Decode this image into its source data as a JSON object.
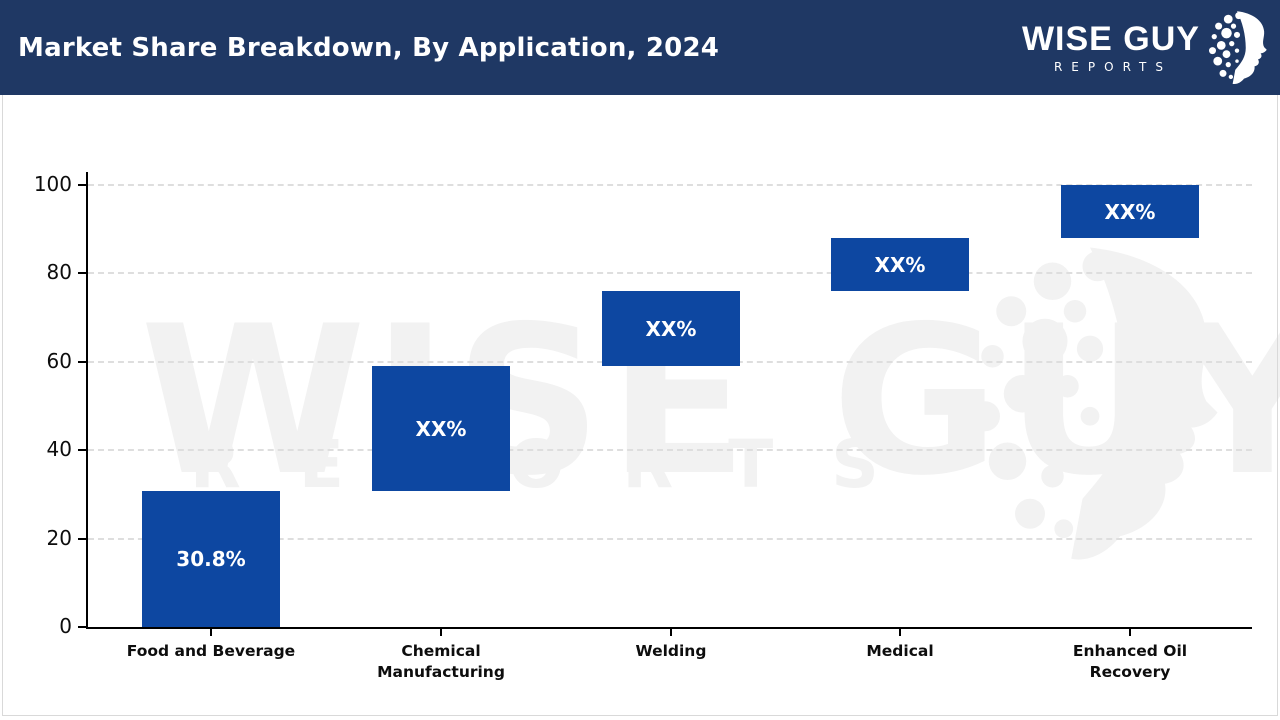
{
  "header": {
    "title": "Market Share Breakdown, By Application, 2024",
    "logo": {
      "line1": "WISE GUY",
      "line2": "REPORTS"
    }
  },
  "watermark": {
    "line1": "WISE GUY",
    "line2": "REPORTS"
  },
  "colors": {
    "header_bg": "#1f3864",
    "bar": "#0d47a1",
    "bar_label": "#ffffff",
    "grid": "#dedede",
    "axis": "#000000",
    "watermark": "#f2f2f2"
  },
  "chart_data": {
    "type": "bar",
    "subtype": "waterfall",
    "title": "Market Share Breakdown, By Application, 2024",
    "categories": [
      "Food and Beverage",
      "Chemical Manufacturing",
      "Welding",
      "Medical",
      "Enhanced Oil Recovery"
    ],
    "segments": [
      {
        "category": "Food and Beverage",
        "start": 0,
        "end": 30.8,
        "label": "30.8%"
      },
      {
        "category": "Chemical Manufacturing",
        "start": 30.8,
        "end": 59,
        "label": "XX%"
      },
      {
        "category": "Welding",
        "start": 59,
        "end": 76,
        "label": "XX%"
      },
      {
        "category": "Medical",
        "start": 76,
        "end": 88,
        "label": "XX%"
      },
      {
        "category": "Enhanced Oil Recovery",
        "start": 88,
        "end": 100,
        "label": "XX%"
      }
    ],
    "yticks": [
      0,
      20,
      40,
      60,
      80,
      100
    ],
    "ylim": [
      0,
      103
    ],
    "xlabel": "",
    "ylabel": "",
    "grid": "horizontal-dashed",
    "legend": "none",
    "bar_color": "#0d47a1",
    "value_label_color": "#ffffff"
  }
}
